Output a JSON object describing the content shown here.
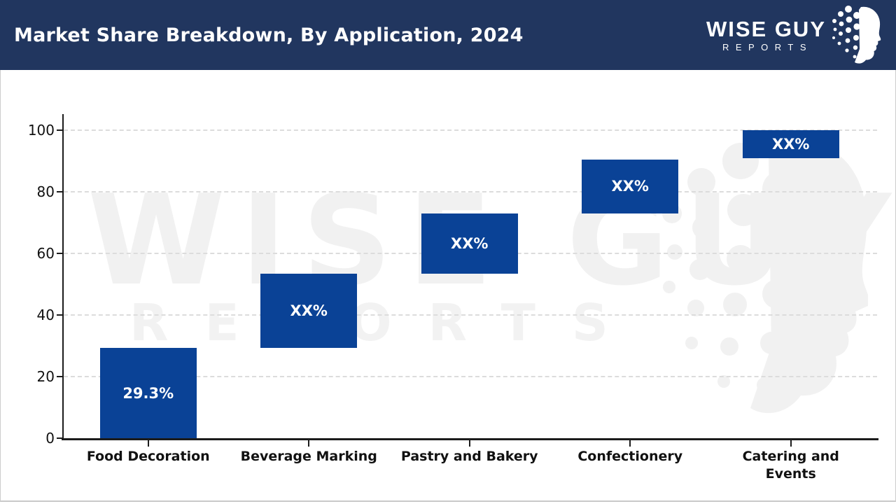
{
  "header": {
    "title": "Market Share Breakdown, By Application, 2024",
    "bg_color": "#21365f",
    "logo": {
      "line1": "WISE GUY",
      "line2": "REPORTS"
    }
  },
  "watermark": {
    "line1": "WISE GUY",
    "line2": "REPORTS"
  },
  "chart_data": {
    "type": "bar",
    "subtype": "waterfall",
    "title": "Market Share Breakdown, By Application, 2024",
    "xlabel": "",
    "ylabel": "",
    "ylim": [
      0,
      105
    ],
    "yticks": [
      0,
      20,
      40,
      60,
      80,
      100
    ],
    "grid": true,
    "legend": false,
    "bar_color": "#0a4296",
    "bar_label_color": "#ffffff",
    "categories": [
      "Food Decoration",
      "Beverage Marking",
      "Pastry and Bakery",
      "Confectionery",
      "Catering and\nEvents"
    ],
    "segments": [
      {
        "category": "Food Decoration",
        "start": 0,
        "end": 29.3,
        "label": "29.3%"
      },
      {
        "category": "Beverage Marking",
        "start": 29.3,
        "end": 53.5,
        "label": "XX%"
      },
      {
        "category": "Pastry and Bakery",
        "start": 53.5,
        "end": 73.0,
        "label": "XX%"
      },
      {
        "category": "Confectionery",
        "start": 73.0,
        "end": 90.5,
        "label": "XX%"
      },
      {
        "category": "Catering and Events",
        "start": 91.0,
        "end": 100.0,
        "label": "XX%"
      }
    ]
  }
}
